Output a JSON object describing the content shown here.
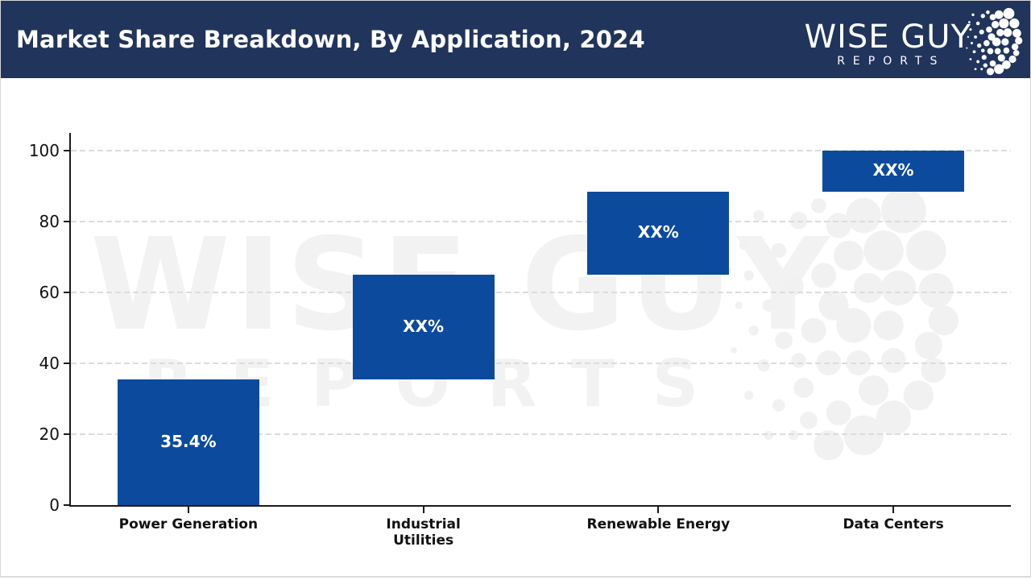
{
  "header": {
    "title": "Market Share Breakdown, By Application, 2024",
    "bg_color": "#20345c",
    "logo": {
      "line1": "WISE GUY",
      "line2": "REPORTS"
    }
  },
  "watermark": {
    "line1": "WISE GUY",
    "line2": "REPORTS"
  },
  "colors": {
    "header_bg": "#20345c",
    "bar": "#0c4a9e",
    "grid": "#dcdcdc",
    "axis": "#1a1a1a",
    "watermark": "#f2f2f2",
    "bar_label": "#ffffff",
    "title_text": "#ffffff"
  },
  "chart_data": {
    "type": "bar",
    "subtype": "waterfall",
    "title": "Market Share Breakdown, By Application, 2024",
    "categories": [
      "Power Generation",
      "Industrial\nUtilities",
      "Renewable Energy",
      "Data Centers"
    ],
    "series": [
      {
        "name": "Market share (%)",
        "segments": [
          {
            "start": 0,
            "end": 35.4,
            "label": "35.4%"
          },
          {
            "start": 35.4,
            "end": 65.0,
            "label": "XX%",
            "masked": true
          },
          {
            "start": 65.0,
            "end": 88.5,
            "label": "XX%",
            "masked": true
          },
          {
            "start": 88.5,
            "end": 100,
            "label": "XX%",
            "masked": true
          }
        ]
      }
    ],
    "bar_labels": [
      "35.4%",
      "XX%",
      "XX%",
      "XX%"
    ],
    "xlabel": "",
    "ylabel": "",
    "ylim": [
      0,
      100
    ],
    "yticks": [
      0,
      20,
      40,
      60,
      80,
      100
    ],
    "grid": "horizontal-dashed",
    "legend": false,
    "bar_color": "#0c4a9e"
  }
}
